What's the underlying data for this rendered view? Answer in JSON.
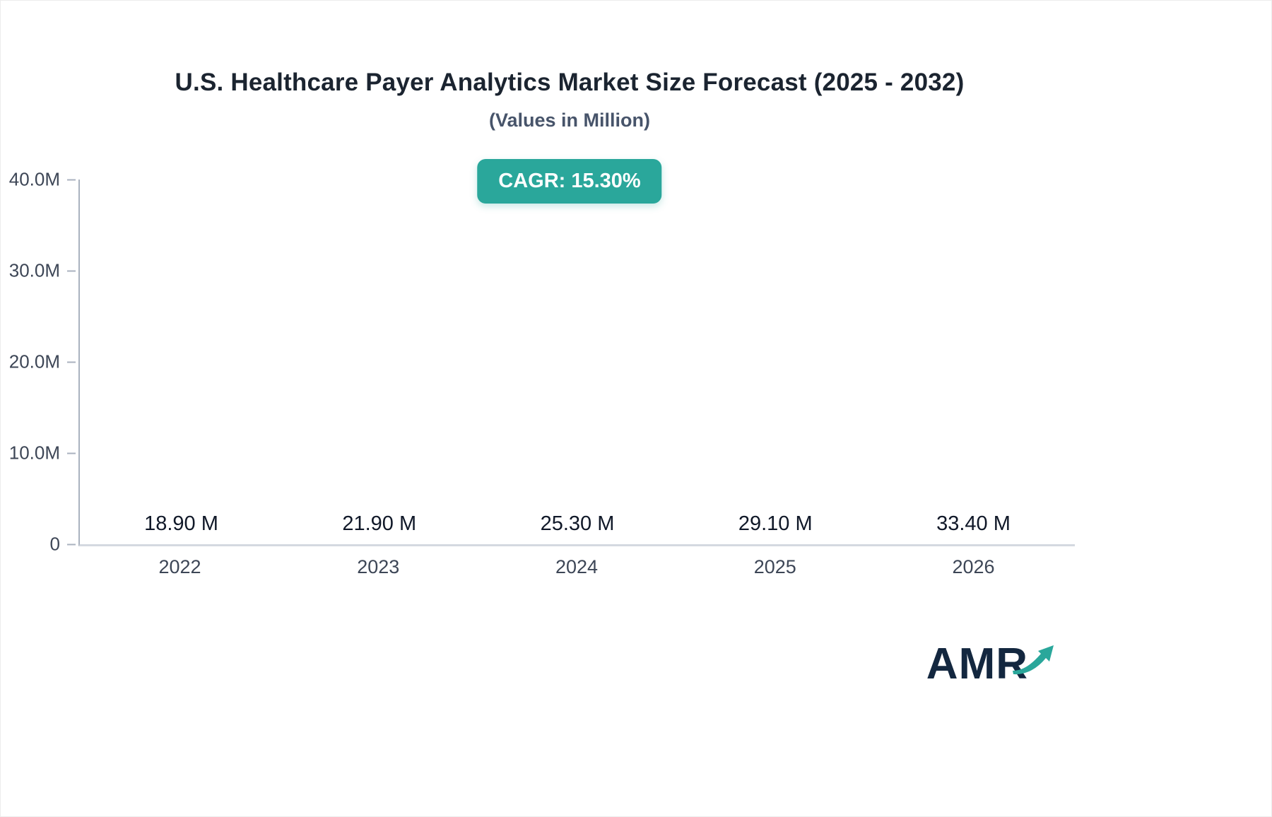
{
  "header": {
    "title": "U.S. Healthcare Payer Analytics Market Size Forecast (2025 - 2032)",
    "subtitle": "(Values in Million)"
  },
  "badge": {
    "label": "CAGR: 15.30%",
    "background": "#2aa79b"
  },
  "chart_data": {
    "type": "bar",
    "title": "U.S. Healthcare Payer Analytics Market Size Forecast (2025 - 2032)",
    "subtitle": "(Values in Million)",
    "categories": [
      "2022",
      "2023",
      "2024",
      "2025",
      "2026"
    ],
    "values": [
      18.9,
      21.9,
      25.3,
      29.1,
      33.4
    ],
    "value_labels": [
      "18.90 M",
      "21.90 M",
      "25.30 M",
      "29.10 M",
      "33.40 M"
    ],
    "unit": "Million USD",
    "cagr": "15.30%",
    "xlabel": "",
    "ylabel": "",
    "ylim": [
      0,
      40
    ],
    "yticks": [
      {
        "value": 0,
        "label": "0"
      },
      {
        "value": 10,
        "label": "10.0M"
      },
      {
        "value": 20,
        "label": "20.0M"
      },
      {
        "value": 30,
        "label": "30.0M"
      },
      {
        "value": 40,
        "label": "40.0M"
      }
    ],
    "grid": false,
    "legend": null,
    "bar_color": "#36a99c",
    "bar_side_color": "#1f7d72"
  },
  "logo": {
    "text": "AMR",
    "arrow_color": "#2aa79b"
  }
}
